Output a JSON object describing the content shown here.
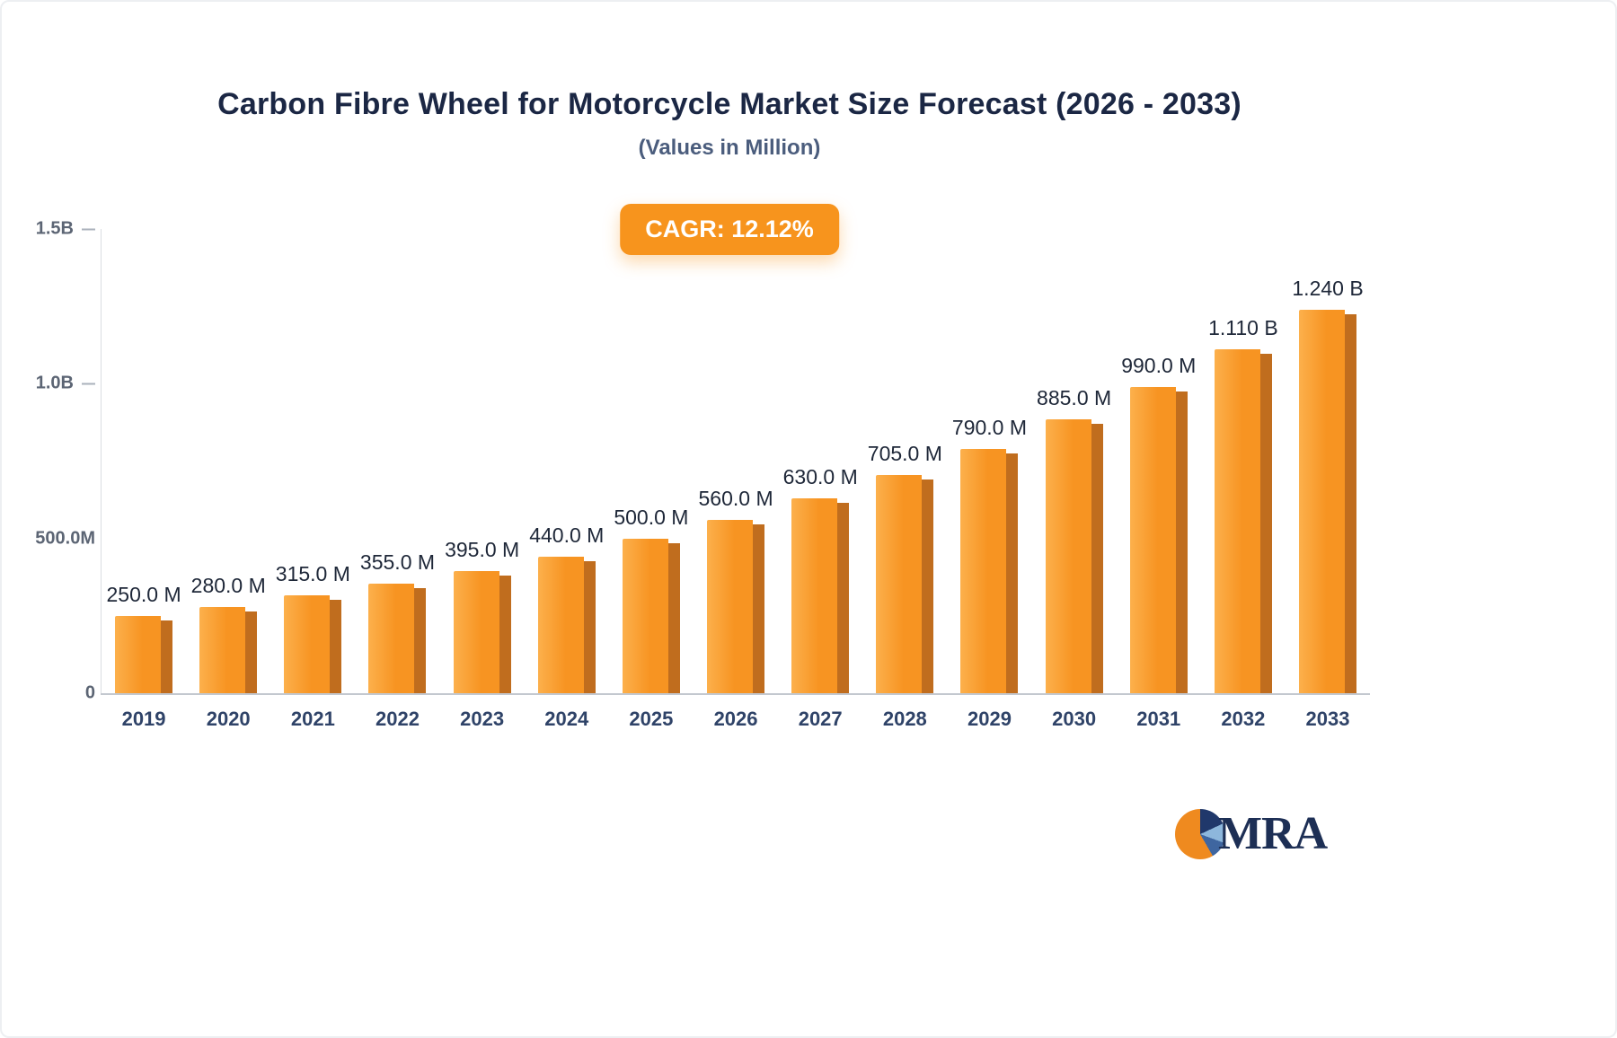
{
  "header": {
    "title": "Carbon Fibre Wheel for Motorcycle Market Size Forecast (2026 - 2033)",
    "subtitle": "(Values in Million)",
    "cagr_badge": "CAGR: 12.12%"
  },
  "logo": {
    "text": "MRA"
  },
  "colors": {
    "badge_bg": "#F7941D",
    "title_color": "#1B2744",
    "subtitle_color": "#4B5D7D",
    "axis_line": "#C3C8CF"
  },
  "chart_data": {
    "type": "bar",
    "title": "Carbon Fibre Wheel for Motorcycle Market Size Forecast (2026 - 2033)",
    "subtitle": "(Values in Million)",
    "cagr_label": "CAGR: 12.12%",
    "categories": [
      "2019",
      "2020",
      "2021",
      "2022",
      "2023",
      "2024",
      "2025",
      "2026",
      "2027",
      "2028",
      "2029",
      "2030",
      "2031",
      "2032",
      "2033"
    ],
    "values_millions": [
      250,
      280,
      315,
      355,
      395,
      440,
      500,
      560,
      630,
      705,
      790,
      885,
      990,
      1110,
      1240
    ],
    "bar_labels": [
      "250.0 M",
      "280.0 M",
      "315.0 M",
      "355.0 M",
      "395.0 M",
      "440.0 M",
      "500.0 M",
      "560.0 M",
      "630.0 M",
      "705.0 M",
      "790.0 M",
      "885.0 M",
      "990.0 M",
      "1.110 B",
      "1.240 B"
    ],
    "xlabel": "",
    "ylabel": "",
    "ylim_millions": [
      0,
      1500
    ],
    "y_ticks": [
      {
        "label": "1.5B",
        "value_millions": 1500,
        "tick_dash": true
      },
      {
        "label": "1.0B",
        "value_millions": 1000,
        "tick_dash": true
      },
      {
        "label": "500.0M",
        "value_millions": 500,
        "tick_dash": false
      },
      {
        "label": "0",
        "value_millions": 0,
        "tick_dash": false
      }
    ],
    "grid": false,
    "legend": false,
    "bar_color": "#F79422",
    "bar_color_light": "#FCB04C",
    "bar_side_color": "#C06D1E"
  }
}
